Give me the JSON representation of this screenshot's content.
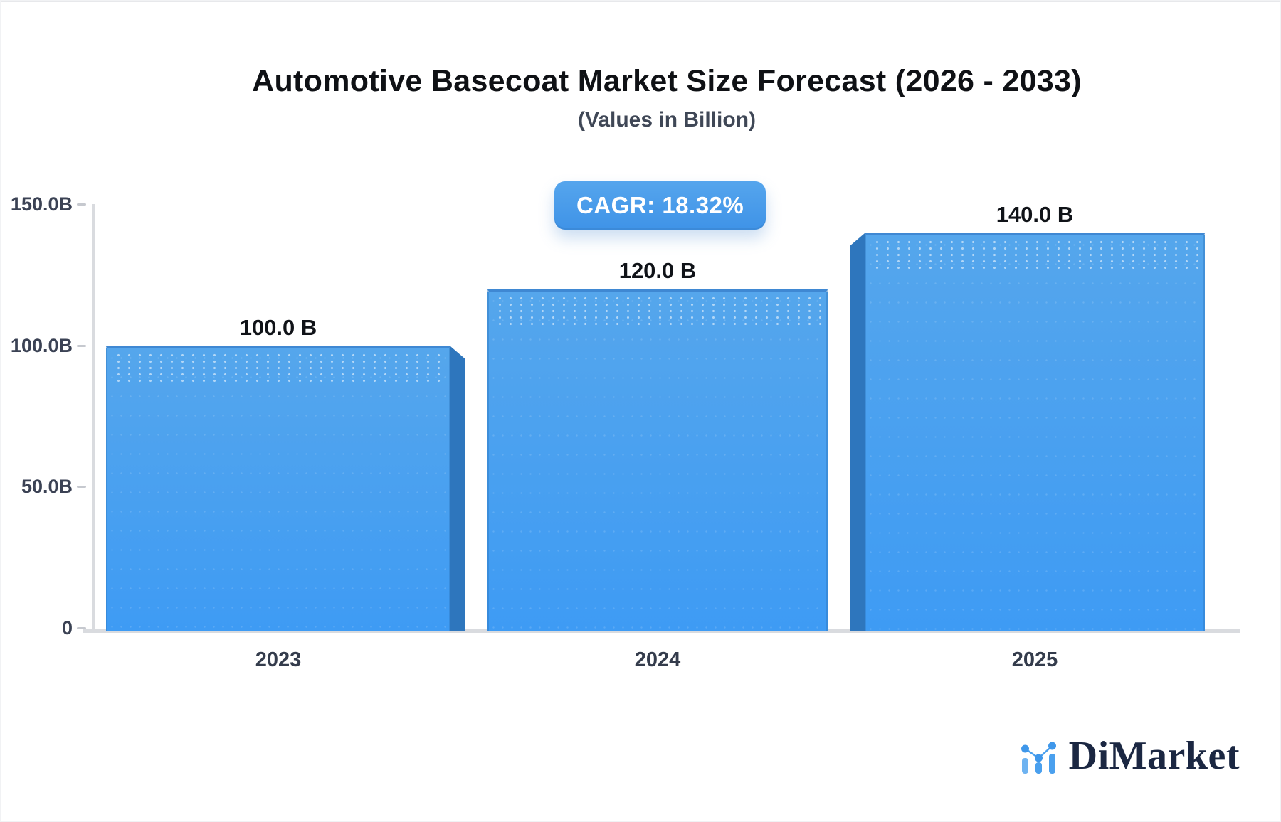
{
  "title": "Automotive Basecoat Market Size Forecast (2026 - 2033)",
  "subtitle": "(Values in Billion)",
  "badge": {
    "label": "CAGR: 18.32%"
  },
  "chart_data": {
    "type": "bar",
    "title": "Automotive Basecoat Market Size Forecast (2026 - 2033)",
    "subtitle": "(Values in Billion)",
    "cagr": "18.32%",
    "categories": [
      "2023",
      "2024",
      "2025"
    ],
    "values": [
      100.0,
      120.0,
      140.0
    ],
    "value_labels": [
      "100.0 B",
      "120.0 B",
      "140.0 B"
    ],
    "unit": "Billion (B)",
    "ylim": [
      0,
      150
    ],
    "y_ticks": [
      {
        "label": "150.0B",
        "value": 150
      },
      {
        "label": "100.0B",
        "value": 100
      },
      {
        "label": "50.0B",
        "value": 50
      },
      {
        "label": "0",
        "value": 0
      }
    ],
    "grid": false,
    "legend": false,
    "bar_color_top": "#55a6ec",
    "bar_color_bottom": "#3e9bf4",
    "bar_side_color": "#2e76bd"
  },
  "logo": {
    "text": "DiMarket",
    "icon": "mini-bar-chart-icon",
    "text_color": "#1b2742",
    "icon_color": "#4aa0ee"
  },
  "colors": {
    "badge_bg": "#4a9ceb",
    "axis_line": "#d9dbdf",
    "axis_label": "#3b4254",
    "value_label": "#101318",
    "title": "#0f1115",
    "subtitle": "#3f4756"
  }
}
